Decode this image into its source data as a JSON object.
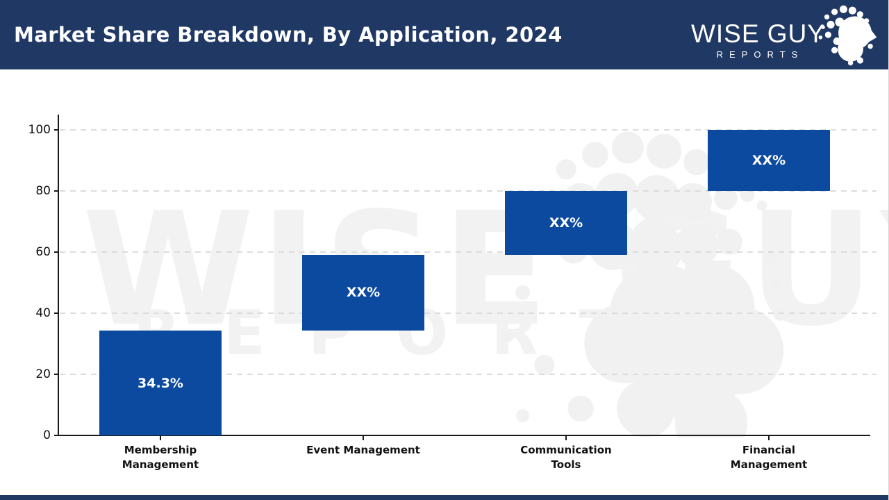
{
  "header": {
    "title": "Market Share Breakdown, By Application, 2024",
    "bg_color": "#1f3864",
    "logo": {
      "wordmark": "WISE GUY",
      "subtext": "REPORTS"
    }
  },
  "watermark": {
    "line1": "WISE GUY",
    "line2": "REPORTS",
    "color": "#f2f2f2"
  },
  "chart_data": {
    "type": "bar",
    "subtype": "waterfall",
    "title": "Market Share Breakdown, By Application, 2024",
    "categories": [
      "Membership\nManagement",
      "Event Management",
      "Communication\nTools",
      "Financial\nManagement"
    ],
    "segments": [
      {
        "category": "Membership Management",
        "start": 0,
        "end": 34.3,
        "label": "34.3%"
      },
      {
        "category": "Event Management",
        "start": 34.3,
        "end": 59.2,
        "label": "XX%"
      },
      {
        "category": "Communication Tools",
        "start": 59.2,
        "end": 79.9,
        "label": "XX%"
      },
      {
        "category": "Financial Management",
        "start": 79.9,
        "end": 100,
        "label": "XX%"
      }
    ],
    "yticks": [
      0,
      20,
      40,
      60,
      80,
      100
    ],
    "ylim": [
      0,
      105
    ],
    "xlabel": "",
    "ylabel": "",
    "grid": true,
    "grid_style": "dashed",
    "legend": false,
    "bar_color": "#0b4a9e",
    "bar_label_color": "#ffffff",
    "axis_color": "#1a1a1a",
    "gridline_color": "#dcdcdc"
  },
  "footer": {
    "bg_color": "#1f3864"
  }
}
